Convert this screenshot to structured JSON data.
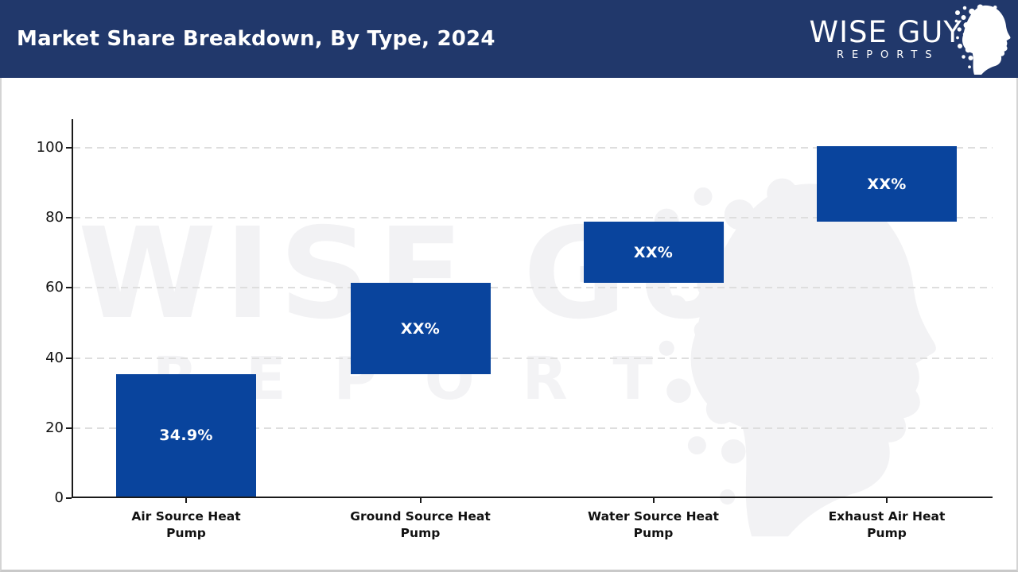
{
  "header": {
    "title": "Market Share Breakdown, By Type, 2024",
    "background_color": "#21386B",
    "logo": {
      "wordmark": "WISE GUY",
      "subtext": "REPORTS"
    }
  },
  "watermark": {
    "wordmark": "WISE GUY",
    "subtext": "REPORTS"
  },
  "chart_data": {
    "type": "bar",
    "subtype": "waterfall",
    "title": "Market Share Breakdown, By Type, 2024",
    "categories": [
      "Air Source Heat Pump",
      "Ground Source Heat Pump",
      "Water Source Heat Pump",
      "Exhaust Air Heat Pump"
    ],
    "category_label_lines": [
      [
        "Air Source Heat",
        "Pump"
      ],
      [
        "Ground Source Heat",
        "Pump"
      ],
      [
        "Water Source Heat",
        "Pump"
      ],
      [
        "Exhaust Air Heat",
        "Pump"
      ]
    ],
    "segments": [
      {
        "category": "Air Source Heat Pump",
        "start": 0,
        "end": 34.9,
        "label": "34.9%"
      },
      {
        "category": "Ground Source Heat Pump",
        "start": 34.9,
        "end": 61,
        "label": "XX%"
      },
      {
        "category": "Water Source Heat Pump",
        "start": 61,
        "end": 78.5,
        "label": "XX%"
      },
      {
        "category": "Exhaust Air Heat Pump",
        "start": 78.5,
        "end": 100,
        "label": "XX%"
      }
    ],
    "y_ticks": [
      0,
      20,
      40,
      60,
      80,
      100
    ],
    "ylim": [
      0,
      108.2
    ],
    "xlabel": "",
    "ylabel": "",
    "grid": "horizontal-dashed",
    "legend": "none",
    "bar_color": "#09449D",
    "bar_label_color": "#FFFFFF",
    "axis_color": "#1A1A1A",
    "gridline_color": "#DEDEDE"
  }
}
